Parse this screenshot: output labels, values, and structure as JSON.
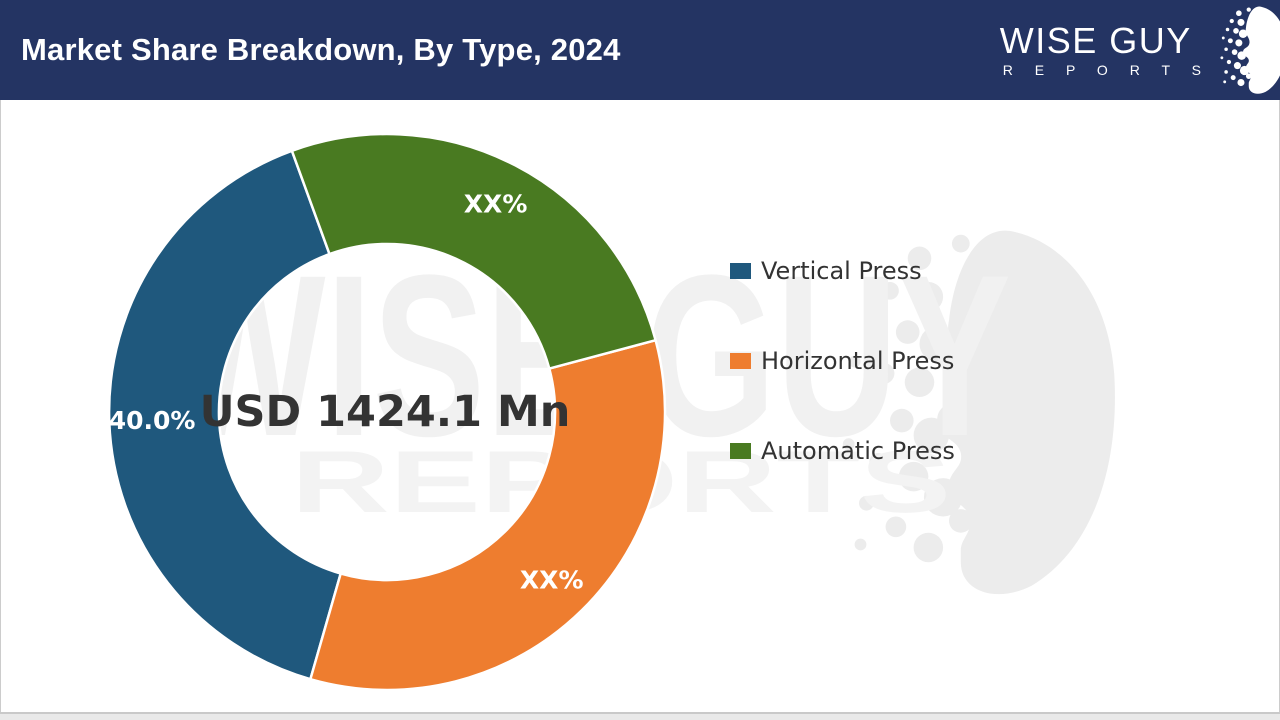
{
  "header": {
    "title": "Market Share Breakdown, By Type, 2024",
    "logo": {
      "line1": "WISE GUY",
      "line2": "R E P O R T S",
      "face_icon": "dotted-face-profile-icon"
    },
    "bg_color": "#243463"
  },
  "watermark": {
    "line1": "WISE GUY",
    "line2": "REPORTS",
    "face_icon": "dotted-face-profile-icon",
    "color": "#f1f1f1"
  },
  "chart_data": {
    "type": "pie",
    "subtype": "donut",
    "title": "Market Share Breakdown, By Type, 2024",
    "center_label": "USD 1424.1 Mn",
    "start_angle_deg": 110,
    "direction": "counterclockwise",
    "slices": [
      {
        "name": "Vertical Press",
        "value_pct": 40.0,
        "label": "40.0%",
        "color": "#1F587D"
      },
      {
        "name": "Horizontal Press",
        "value_pct": 33.6,
        "label": "XX%",
        "color": "#EE7D2F"
      },
      {
        "name": "Automatic Press",
        "value_pct": 26.4,
        "label": "XX%",
        "color": "#497A21"
      }
    ],
    "legend": {
      "position": "right",
      "entries": [
        "Vertical Press",
        "Horizontal Press",
        "Automatic Press"
      ]
    },
    "label_color": "#ffffff",
    "center_label_color": "#333333"
  }
}
